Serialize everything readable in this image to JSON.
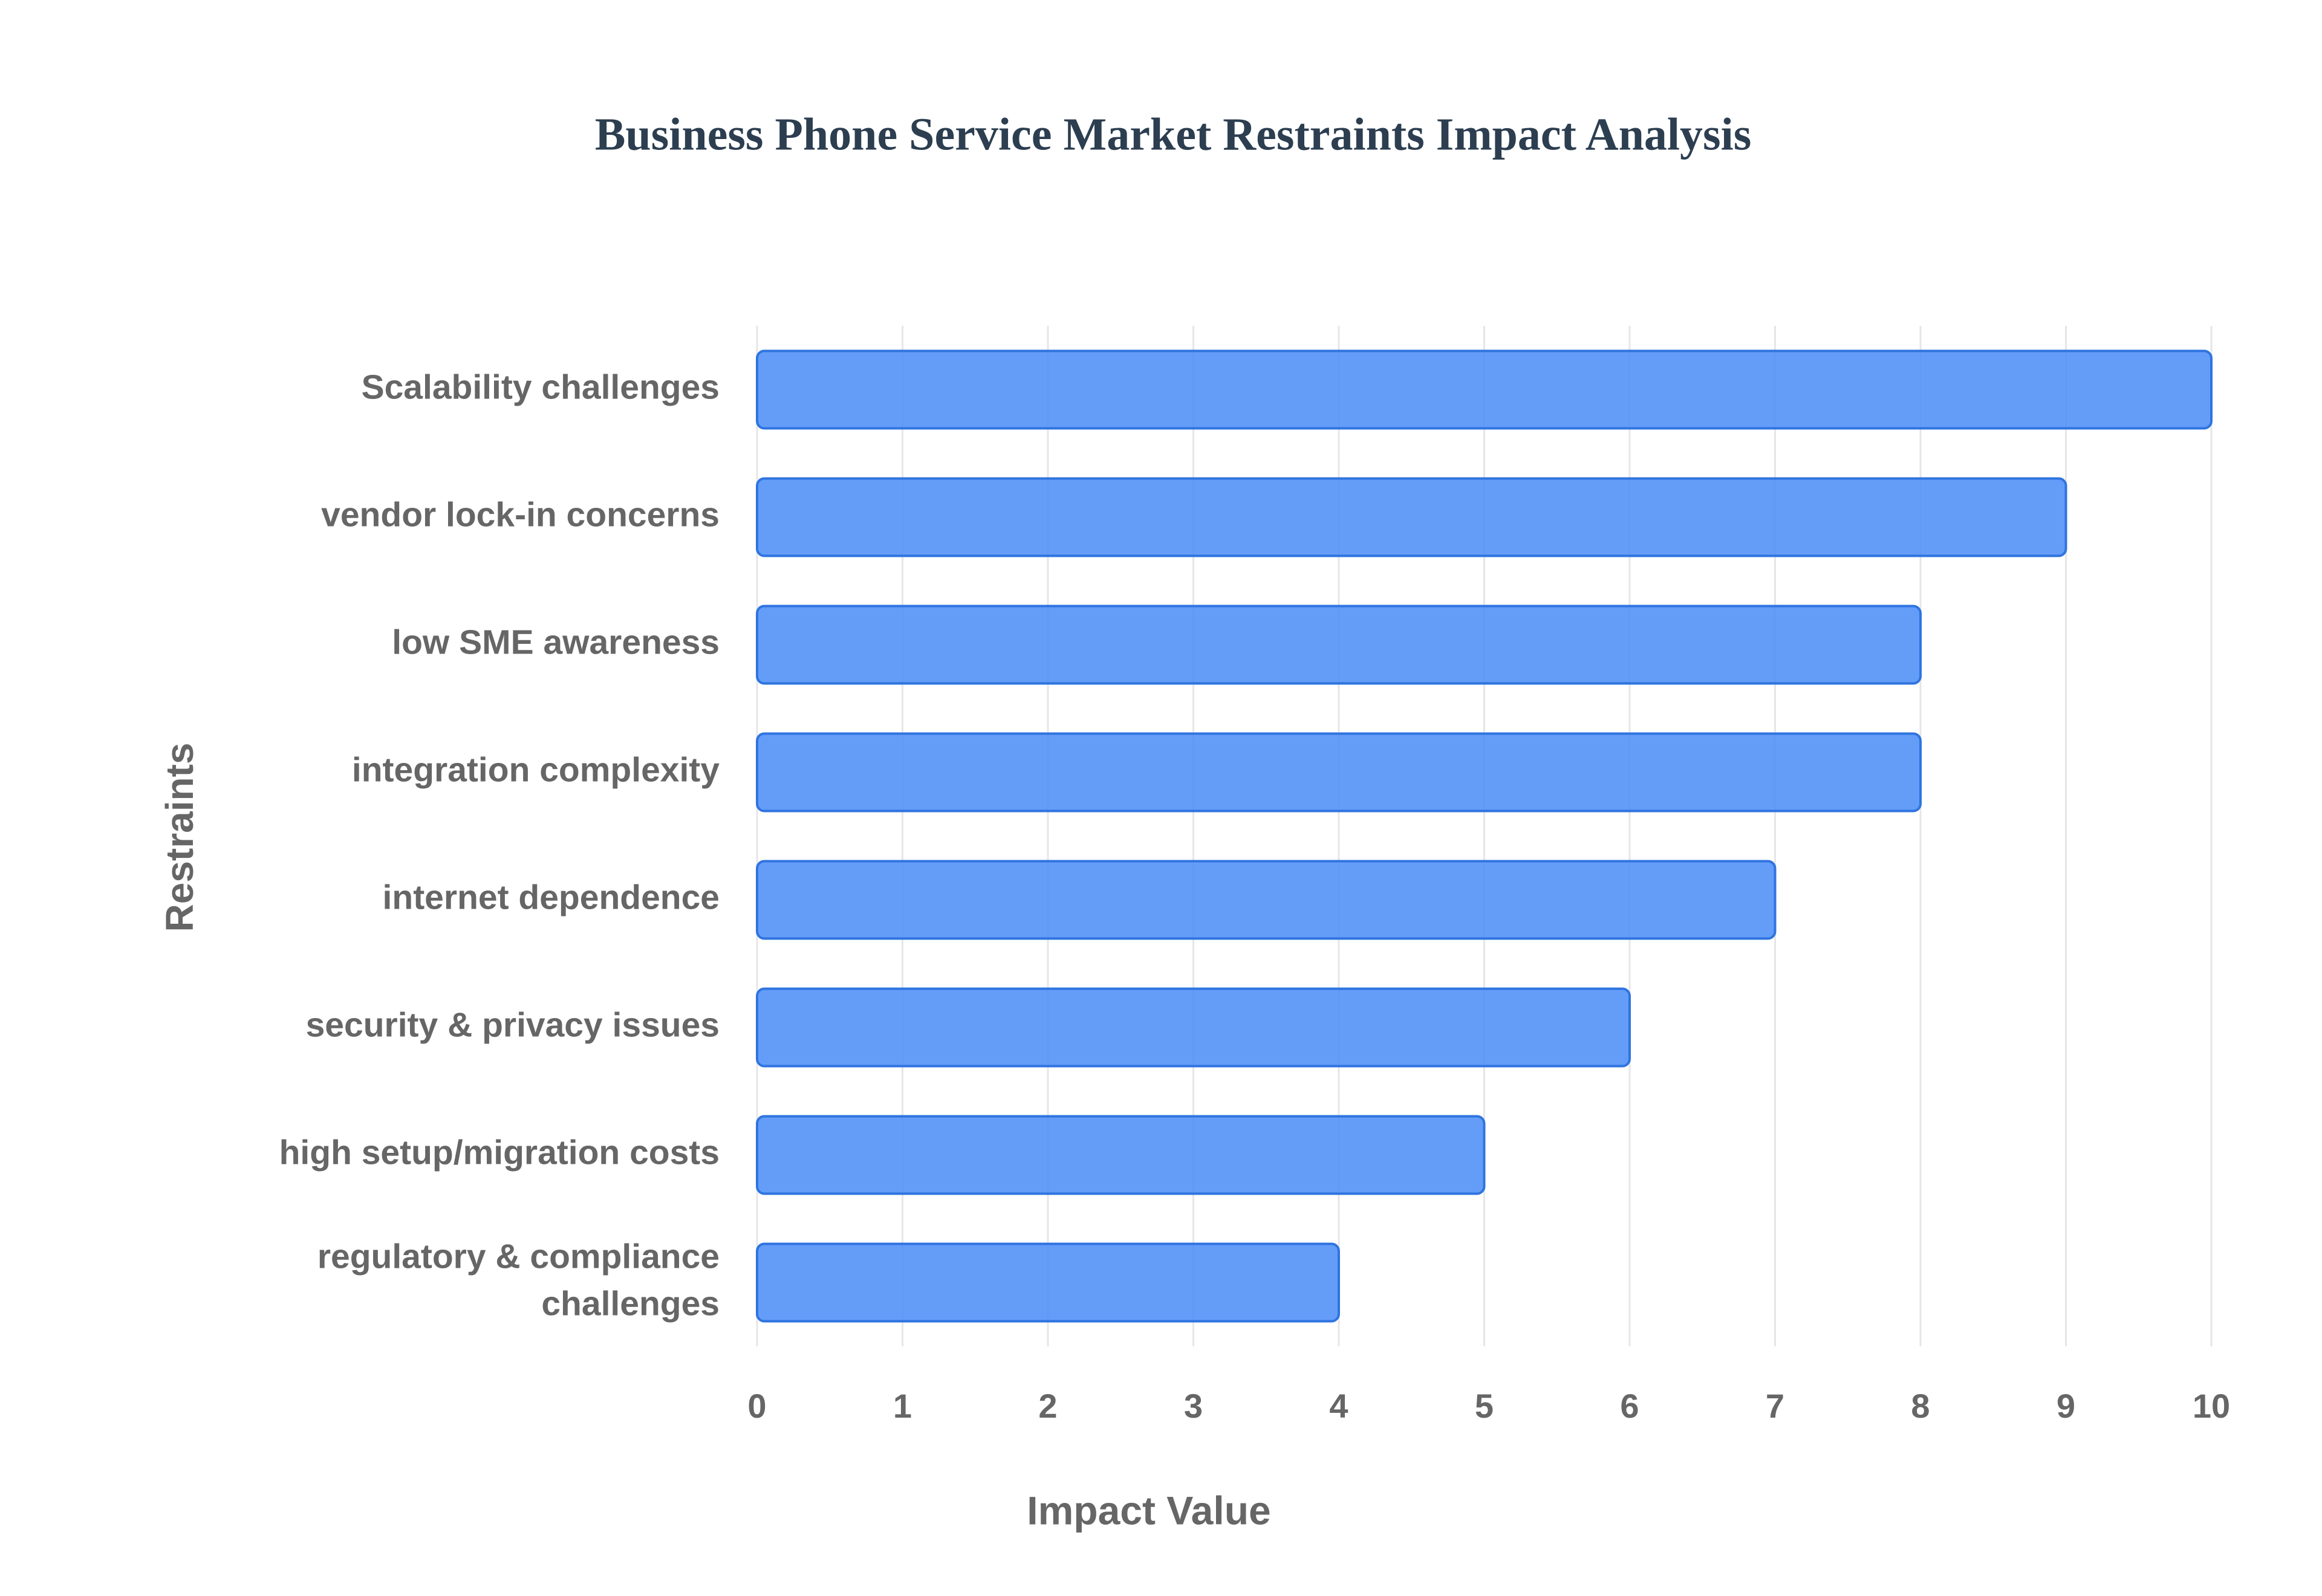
{
  "chart_data": {
    "type": "bar",
    "orientation": "horizontal",
    "title": "Business Phone Service Market Restraints Impact Analysis",
    "x_label": "Impact Value",
    "y_label": "Restraints",
    "categories": [
      "Scalability challenges",
      "vendor lock-in concerns",
      "low SME awareness",
      "integration complexity",
      "internet dependence",
      "security & privacy issues",
      "high setup/migration costs",
      "regulatory & compliance challenges"
    ],
    "values": [
      10,
      9,
      8,
      8,
      7,
      6,
      5,
      4
    ],
    "color": "#4f8ff7",
    "xlim": [
      0,
      10
    ],
    "xticks": [
      0,
      1,
      2,
      3,
      4,
      5,
      6,
      7,
      8,
      9,
      10
    ],
    "grid": true
  }
}
